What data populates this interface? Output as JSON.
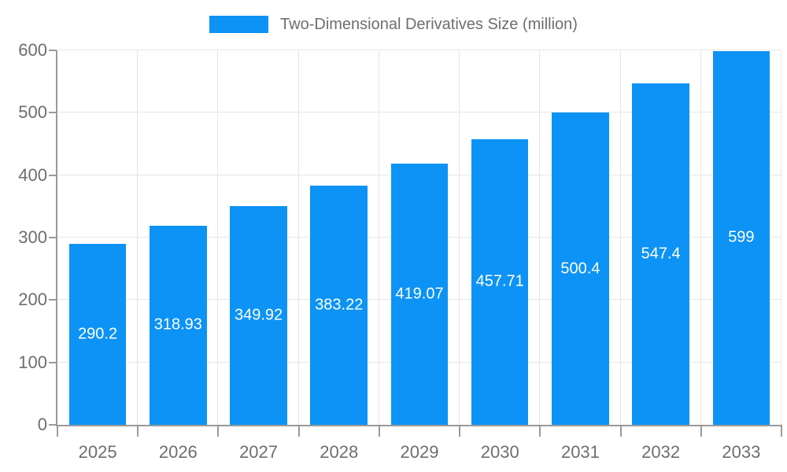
{
  "chart_data": {
    "type": "bar",
    "title": "Two-Dimensional Derivatives Size (million)",
    "categories": [
      "2025",
      "2026",
      "2027",
      "2028",
      "2029",
      "2030",
      "2031",
      "2032",
      "2033"
    ],
    "values": [
      290.2,
      318.93,
      349.92,
      383.22,
      419.07,
      457.71,
      500.4,
      547.4,
      599
    ],
    "value_labels": [
      "290.2",
      "318.93",
      "349.92",
      "383.22",
      "419.07",
      "457.71",
      "500.4",
      "547.4",
      "599"
    ],
    "xlabel": "",
    "ylabel": "",
    "ylim": [
      0,
      600
    ],
    "y_ticks": [
      "0",
      "100",
      "200",
      "300",
      "400",
      "500",
      "600"
    ],
    "grid": "horizontal-and-vertical",
    "legend_position": "top-center",
    "colors": {
      "bar": "#0c93f5",
      "bar_label": "#ffffff",
      "axis_line": "#9a9a9a",
      "gridline": "#e6e6e6",
      "tick_text": "#6e6e6e",
      "legend_text": "#6e6e6e",
      "background": "#ffffff"
    }
  }
}
